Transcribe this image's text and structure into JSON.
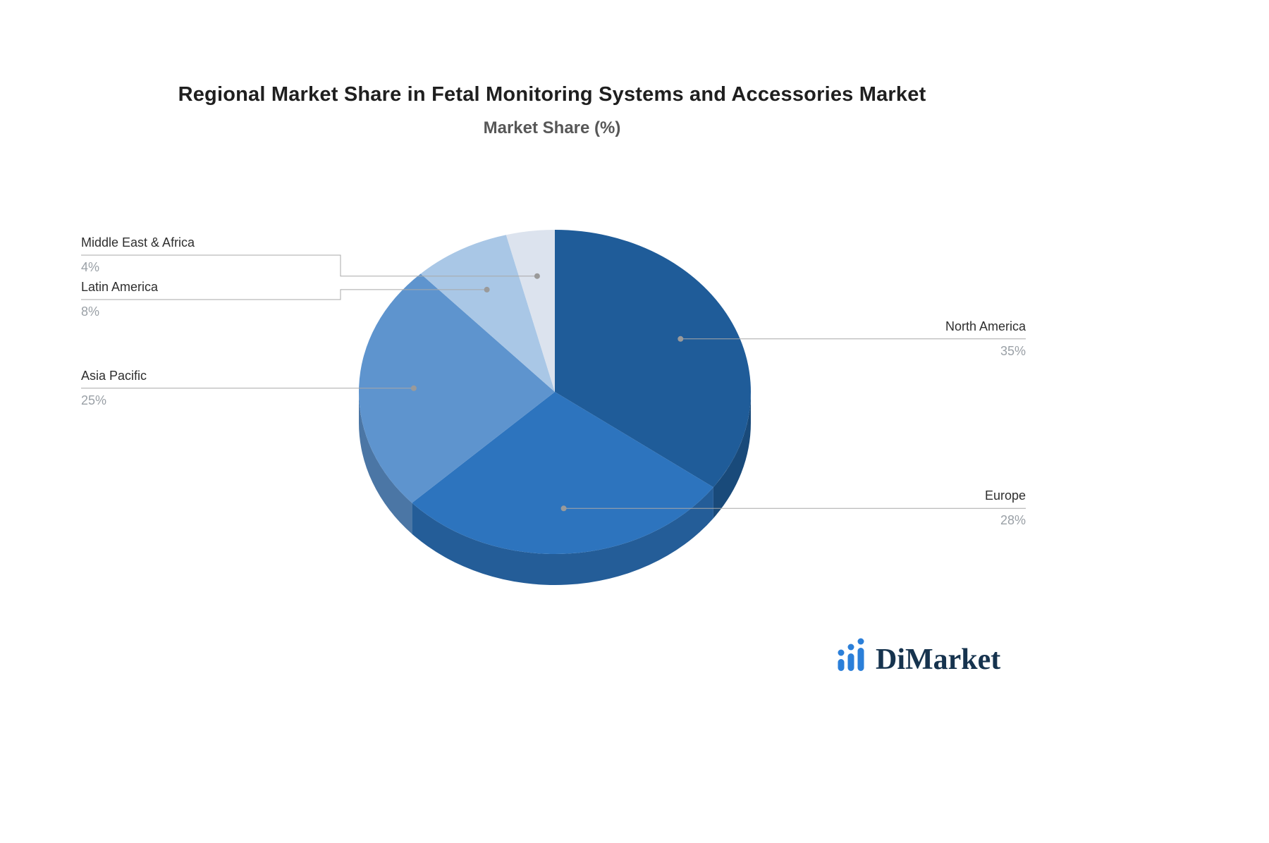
{
  "title": "Regional Market Share in Fetal Monitoring Systems and Accessories Market",
  "subtitle": "Market Share (%)",
  "logo": {
    "text": "DiMarket"
  },
  "chart_data": {
    "type": "pie",
    "title": "Regional Market Share in Fetal Monitoring Systems and Accessories Market",
    "subtitle": "Market Share (%)",
    "unit": "%",
    "effect": "3d",
    "start_angle_deg": 0,
    "direction": "clockwise",
    "labels": [
      "North America",
      "Europe",
      "Asia Pacific",
      "Latin America",
      "Middle East & Africa"
    ],
    "values": [
      35,
      28,
      25,
      8,
      4
    ],
    "display_values": [
      "35%",
      "28%",
      "25%",
      "8%",
      "4%"
    ],
    "colors": [
      "#1F5C99",
      "#2D74BE",
      "#5E94CE",
      "#A9C7E6",
      "#DCE3EE"
    ],
    "leader_line_color": "#a8a8a8",
    "label_color": "#2e2e2e",
    "value_color": "#9aa0a6"
  }
}
